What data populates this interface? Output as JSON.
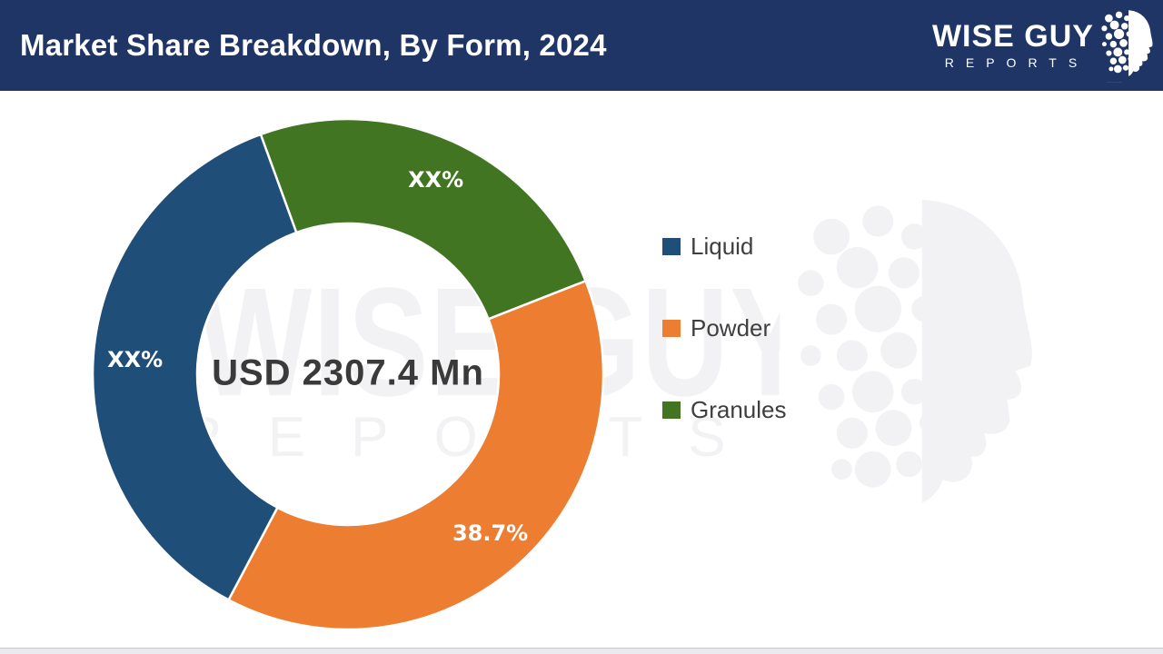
{
  "header": {
    "title": "Market Share Breakdown, By Form, 2024",
    "logo": {
      "line1": "WISE GUY",
      "line2": "REPORTS"
    }
  },
  "colors": {
    "header_bg": "#1F3566",
    "liquid_blue": "#1F4E78",
    "powder_orange": "#ED7D31",
    "granules_green": "#427522",
    "center_text": "#3A3A3A",
    "watermark_gray": "#F2F2F4"
  },
  "chart_data": {
    "type": "pie",
    "subtype": "donut",
    "title": "Market Share Breakdown, By Form, 2024",
    "center_label": "USD 2307.4 Mn",
    "start_angle_deg": -20,
    "direction": "clockwise",
    "inner_radius_ratio": 0.59,
    "draw_order": [
      "Granules",
      "Powder",
      "Liquid"
    ],
    "legend_position": "right",
    "segments": [
      {
        "name": "Liquid",
        "value_pct": 36.7,
        "label": "XX%",
        "color": "#1F4E78"
      },
      {
        "name": "Powder",
        "value_pct": 38.7,
        "label": "38.7%",
        "color": "#ED7D31"
      },
      {
        "name": "Granules",
        "value_pct": 24.6,
        "label": "XX%",
        "color": "#427522"
      }
    ]
  },
  "watermark": {
    "line1": "WISE GUY",
    "line2": "REPORTS"
  }
}
